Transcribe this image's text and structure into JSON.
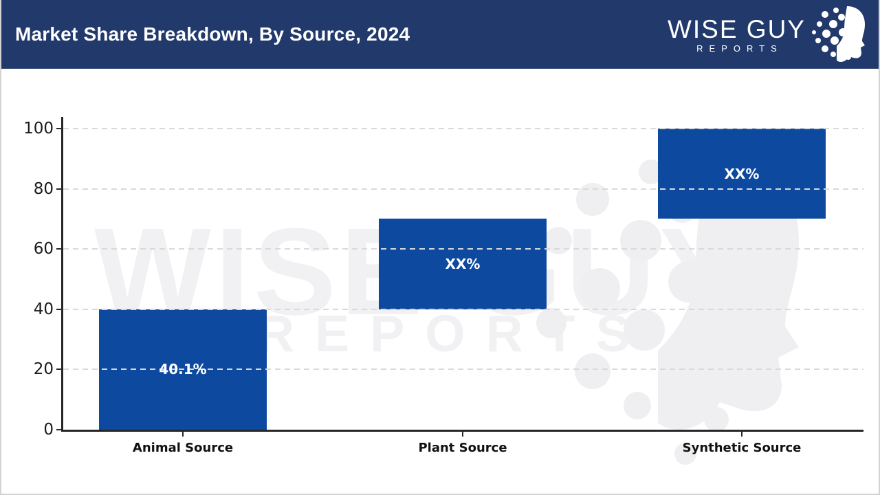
{
  "header": {
    "title": "Market Share Breakdown, By Source, 2024",
    "bg_color": "#21396b",
    "logo": {
      "line1": "WISE GUY",
      "line2": "REPORTS"
    }
  },
  "watermark": {
    "line1": "WISE GUY",
    "line2": "REPORTS"
  },
  "chart_data": {
    "type": "bar",
    "subtype": "floating-waterfall",
    "title": "Market Share Breakdown, By Source, 2024",
    "categories": [
      "Animal Source",
      "Plant Source",
      "Synthetic Source"
    ],
    "segments": [
      {
        "category": "Animal Source",
        "start": 0,
        "end": 40,
        "label": "40.1%"
      },
      {
        "category": "Plant Source",
        "start": 40,
        "end": 70,
        "label": "XX%"
      },
      {
        "category": "Synthetic Source",
        "start": 70,
        "end": 100,
        "label": "XX%"
      }
    ],
    "yticks": [
      0,
      20,
      40,
      60,
      80,
      100
    ],
    "ylim": [
      0,
      104
    ],
    "xlabel": "",
    "ylabel": "",
    "grid": "dashed-horizontal-over-bars",
    "legend": "none",
    "bar_color": "#0d4a9f",
    "bar_label_color": "#ffffff",
    "gridline_color": "#d9d9d9",
    "axis_color": "#262626"
  }
}
